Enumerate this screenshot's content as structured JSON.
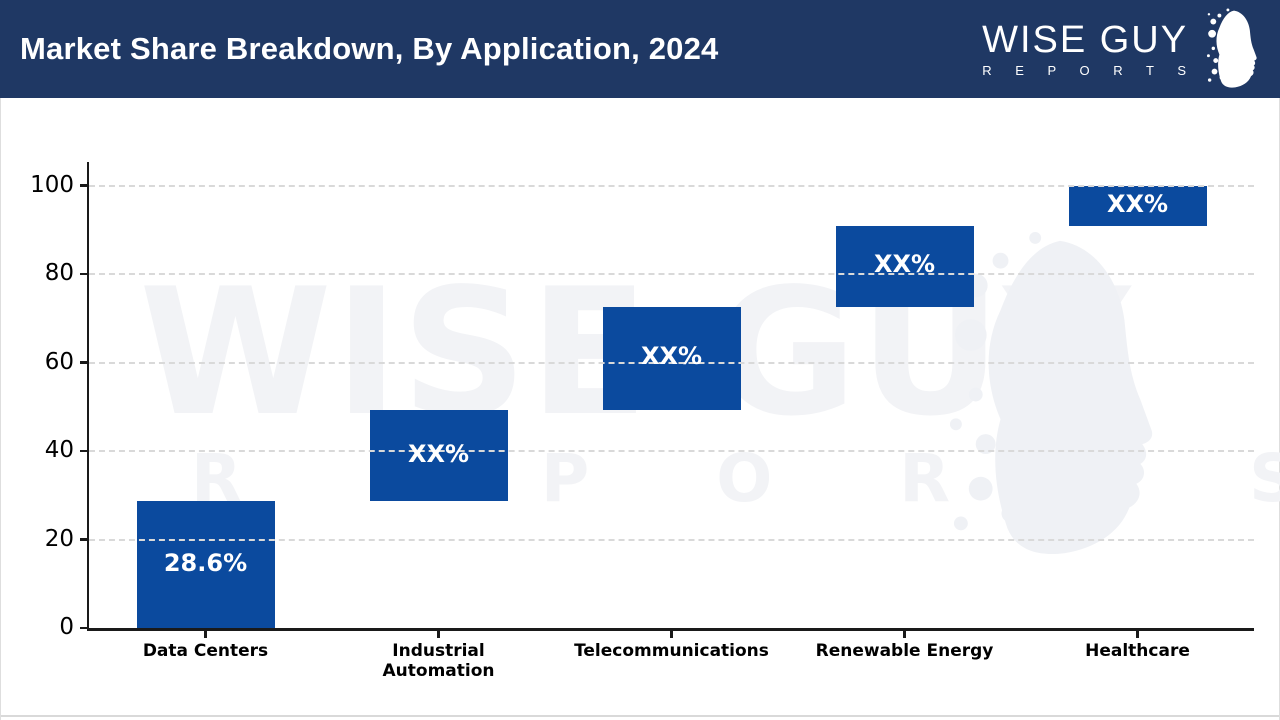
{
  "header": {
    "title": "Market Share Breakdown, By Application, 2024",
    "bg_color": "#1f3864",
    "logo": {
      "line1": "WISE GUY",
      "line2": "R E P O R T S"
    }
  },
  "watermark": {
    "line1": "WISE GUY",
    "line2": "R E P O R T S"
  },
  "chart_data": {
    "type": "bar",
    "subtype": "waterfall",
    "title": "Market Share Breakdown, By Application, 2024",
    "categories": [
      "Data Centers",
      "Industrial\nAutomation",
      "Telecommunications",
      "Renewable Energy",
      "Healthcare"
    ],
    "segments": [
      {
        "label": "28.6%",
        "start": 0,
        "end": 28.6
      },
      {
        "label": "XX%",
        "start": 28.6,
        "end": 49.3
      },
      {
        "label": "XX%",
        "start": 49.3,
        "end": 72.6
      },
      {
        "label": "XX%",
        "start": 72.6,
        "end": 90.8
      },
      {
        "label": "XX%",
        "start": 90.8,
        "end": 100
      }
    ],
    "y_ticks": [
      0,
      20,
      40,
      60,
      80,
      100
    ],
    "ylim": [
      0,
      106
    ],
    "xlabel": "",
    "ylabel": "",
    "grid": "horizontal-dashed",
    "legend": "none",
    "bar_color": "#0b4a9e",
    "bar_label_color": "#ffffff",
    "grid_color": "#d9d9d9",
    "axis_color": "#1a1a1a"
  }
}
